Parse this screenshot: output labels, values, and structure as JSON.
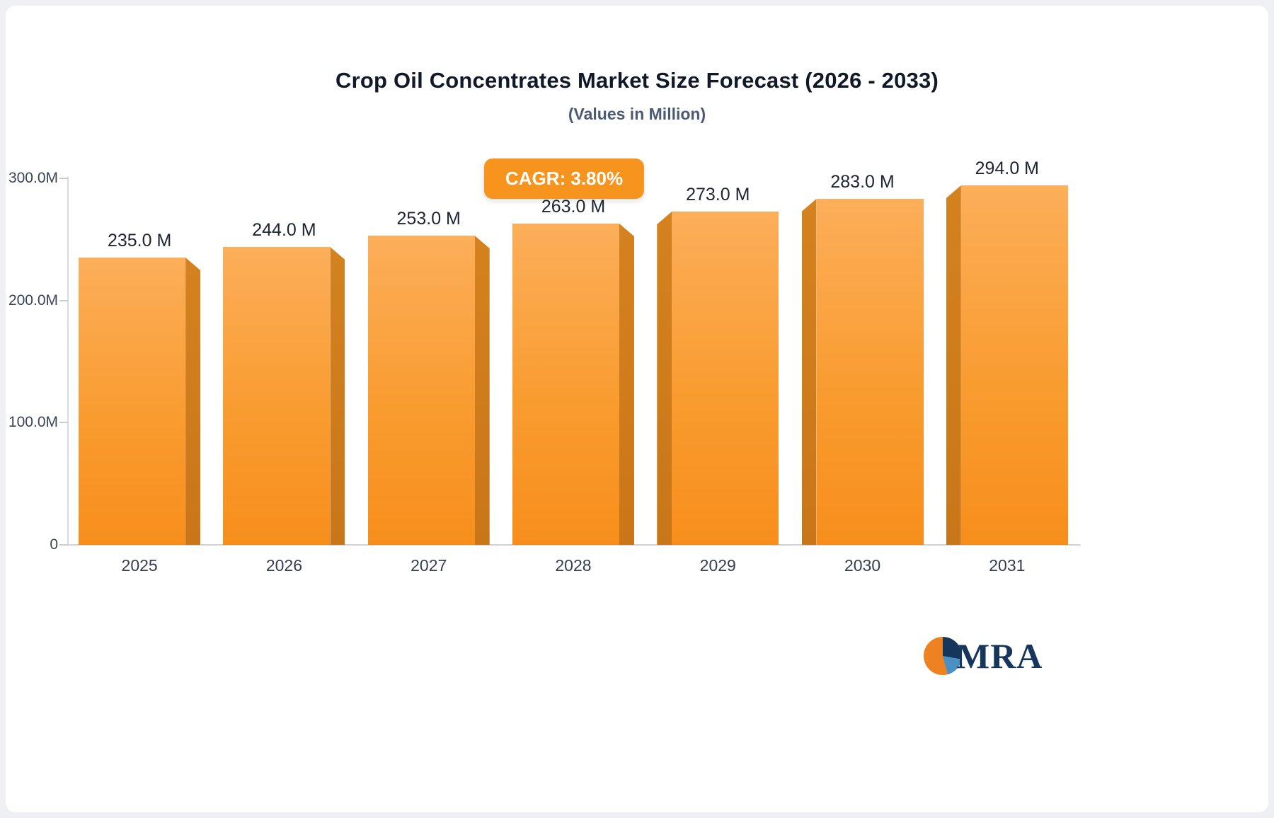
{
  "page": {
    "title": "Crop Oil Concentrates Market Size Forecast (2026 - 2033)",
    "subtitle": "(Values in Million)",
    "cagr_label": "CAGR: 3.80%",
    "logo_text": "MRA"
  },
  "colors": {
    "bar_face_top": "#FCAE5A",
    "bar_face_bottom": "#F78E1C",
    "bar_side": "#C9761A",
    "badge_bg": "#F7941E",
    "badge_text": "#FFFFFF",
    "title_text": "#111827",
    "subtitle_text": "#4B5B74",
    "axis_line": "#D0D5DD",
    "logo_navy": "#16365C",
    "logo_blue": "#4A90C4",
    "logo_orange": "#EE8220"
  },
  "chart_data": {
    "type": "bar",
    "title": "Crop Oil Concentrates Market Size Forecast (2026 - 2033)",
    "subtitle": "(Values in Million)",
    "annotation": "CAGR: 3.80%",
    "categories": [
      "2025",
      "2026",
      "2027",
      "2028",
      "2029",
      "2030",
      "2031"
    ],
    "values": [
      235,
      244,
      253,
      263,
      273,
      283,
      294
    ],
    "value_labels": [
      "235.0 M",
      "244.0 M",
      "253.0 M",
      "263.0 M",
      "273.0 M",
      "283.0 M",
      "294.0 M"
    ],
    "unit": "Million",
    "xlabel": "",
    "ylabel": "",
    "ylim": [
      0,
      300
    ],
    "yticks": [
      0,
      100,
      200,
      300
    ],
    "ytick_labels": [
      "0",
      "100.0M",
      "200.0M",
      "300.0M"
    ],
    "grid": false,
    "legend_position": "none",
    "bar_color": "#F7941E",
    "sides": [
      "right",
      "right",
      "right",
      "right",
      "left",
      "left",
      "left"
    ]
  }
}
